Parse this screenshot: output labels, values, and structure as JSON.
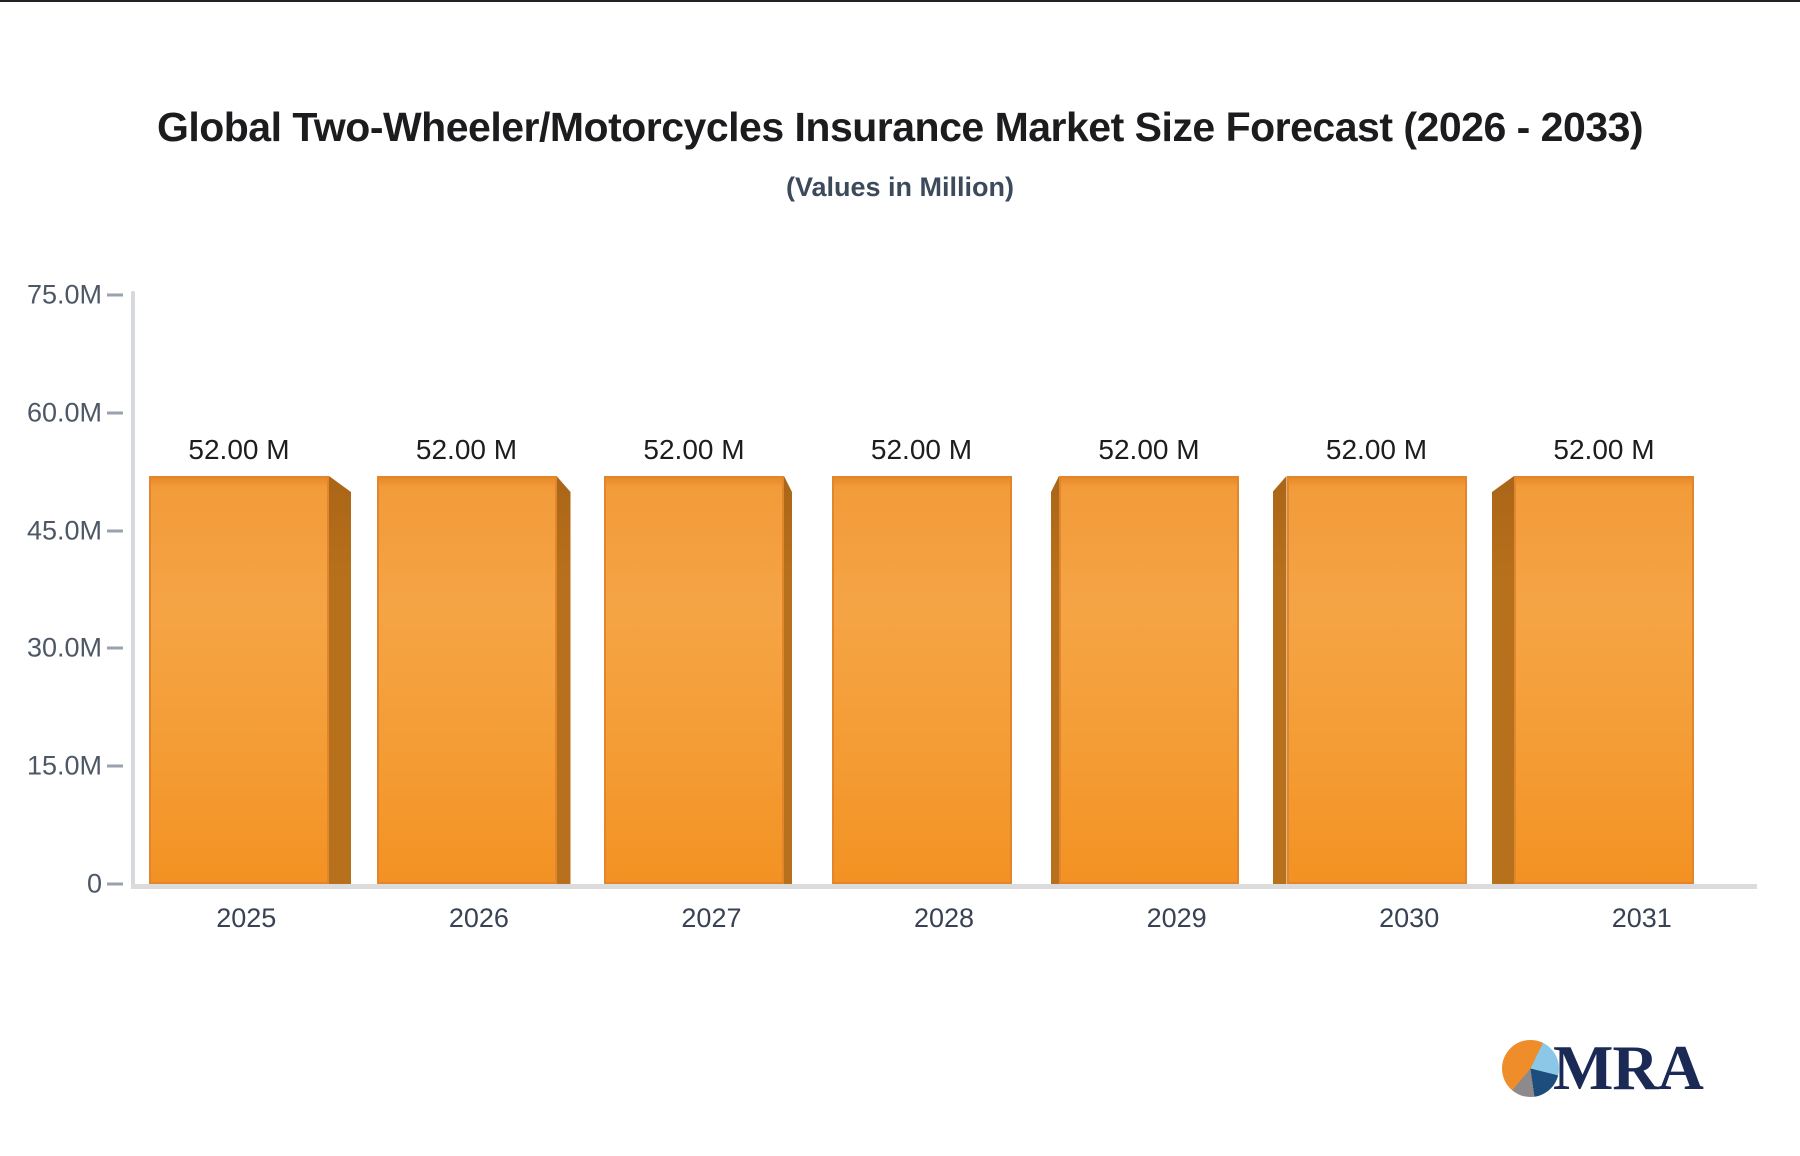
{
  "page": {
    "title": "Global Two-Wheeler/Motorcycles Insurance Market Size Forecast (2026 - 2033)",
    "subtitle": "(Values in Million)"
  },
  "chart_data": {
    "type": "bar",
    "title": "Global Two-Wheeler/Motorcycles Insurance Market Size Forecast (2026 - 2033)",
    "subtitle": "(Values in Million)",
    "categories": [
      "2025",
      "2026",
      "2027",
      "2028",
      "2029",
      "2030",
      "2031"
    ],
    "values": [
      52,
      52,
      52,
      52,
      52,
      52,
      52
    ],
    "bar_labels": [
      "52.00 M",
      "52.00 M",
      "52.00 M",
      "52.00 M",
      "52.00 M",
      "52.00 M",
      "52.00 M"
    ],
    "unit": "Million",
    "xlabel": "",
    "ylabel": "",
    "ylim": [
      0,
      75
    ],
    "ytick_labels": [
      "75.0M",
      "60.0M",
      "45.0M",
      "30.0M",
      "15.0M",
      "0"
    ],
    "ytick_values": [
      75,
      60,
      45,
      30,
      15,
      0
    ],
    "grid": false,
    "legend_position": "none",
    "style": "3d-bars",
    "colors": {
      "bar_face": "#f49a2e",
      "bar_face_light": "#f5a445",
      "bar_side": "#b7701b",
      "bar_border": "#e1862c",
      "axis_line": "#d5d8dc",
      "baseline": "#dcdcdc",
      "tick": "#9aa2ad",
      "ytick_text": "#4d5765",
      "year_text": "#394254",
      "value_text": "#1d1d1f",
      "title_text": "#1c1c1e",
      "subtitle_text": "#3d4a5b"
    }
  },
  "logo": {
    "text": "MRA",
    "icon": "pie-chart-icon",
    "colors": {
      "text": "#1b2a55",
      "pie_orange": "#ee8d29",
      "pie_lightblue": "#8bc7e6",
      "pie_navy": "#1d4d7c",
      "pie_gray": "#8e8a8c"
    }
  }
}
